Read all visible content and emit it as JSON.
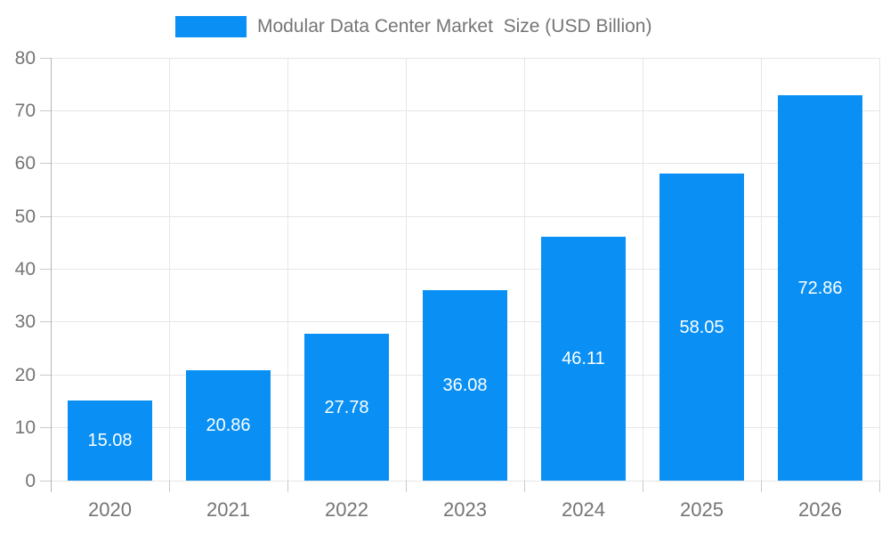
{
  "legend": {
    "label": "Modular Data Center Market  Size (USD Billion)"
  },
  "chart_data": {
    "type": "bar",
    "title": "Modular Data Center Market  Size (USD Billion)",
    "categories": [
      "2020",
      "2021",
      "2022",
      "2023",
      "2024",
      "2025",
      "2026"
    ],
    "series": [
      {
        "name": "Modular Data Center Market  Size (USD Billion)",
        "values": [
          15.08,
          20.86,
          27.78,
          36.08,
          46.11,
          58.05,
          72.86
        ]
      }
    ],
    "value_labels": [
      "15.08",
      "20.86",
      "27.78",
      "36.08",
      "46.11",
      "58.05",
      "72.86"
    ],
    "xlabel": "",
    "ylabel": "",
    "ylim": [
      0,
      80
    ],
    "ytick_step": 10,
    "ytick_labels": [
      "0",
      "10",
      "20",
      "30",
      "40",
      "50",
      "60",
      "70",
      "80"
    ],
    "grid": true,
    "legend_position": "top",
    "bar_label_position": "center-inside"
  },
  "colors": {
    "bar": "#0a90f4",
    "value_label": "#ffffff",
    "axis_text": "#757575",
    "gridline": "#e6e6e6",
    "tick_mark": "#c9c9c9",
    "axis_line": "#b3b3b3",
    "background": "#ffffff"
  }
}
